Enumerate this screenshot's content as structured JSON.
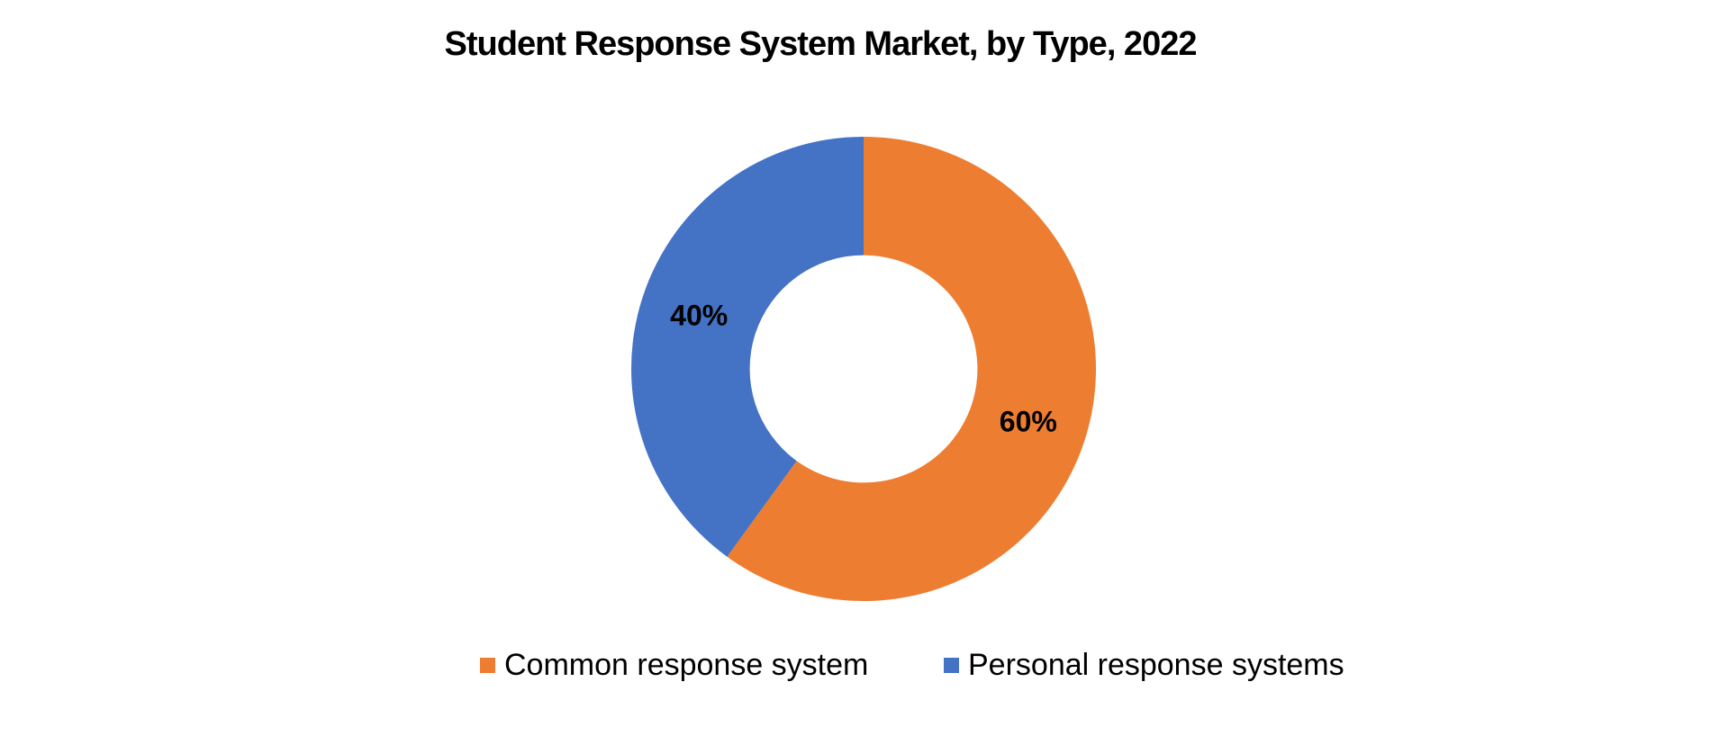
{
  "chart_data": {
    "type": "pie",
    "subtype": "donut",
    "title": "Student Response System Market, by Type, 2022",
    "categories": [
      "Common response system",
      "Personal response systems"
    ],
    "values": [
      60,
      40
    ],
    "labels": [
      "60%",
      "40%"
    ],
    "colors": [
      "#ED7D31",
      "#4472C4"
    ],
    "start_angle_deg": 0,
    "direction": "clockwise",
    "hole_ratio": 0.49,
    "legend_position": "bottom",
    "label_color": "#000000",
    "background": "#FFFFFF"
  },
  "legend": {
    "items": [
      {
        "label": "Common response system",
        "color": "#ED7D31"
      },
      {
        "label": "Personal response systems",
        "color": "#4472C4"
      }
    ]
  }
}
